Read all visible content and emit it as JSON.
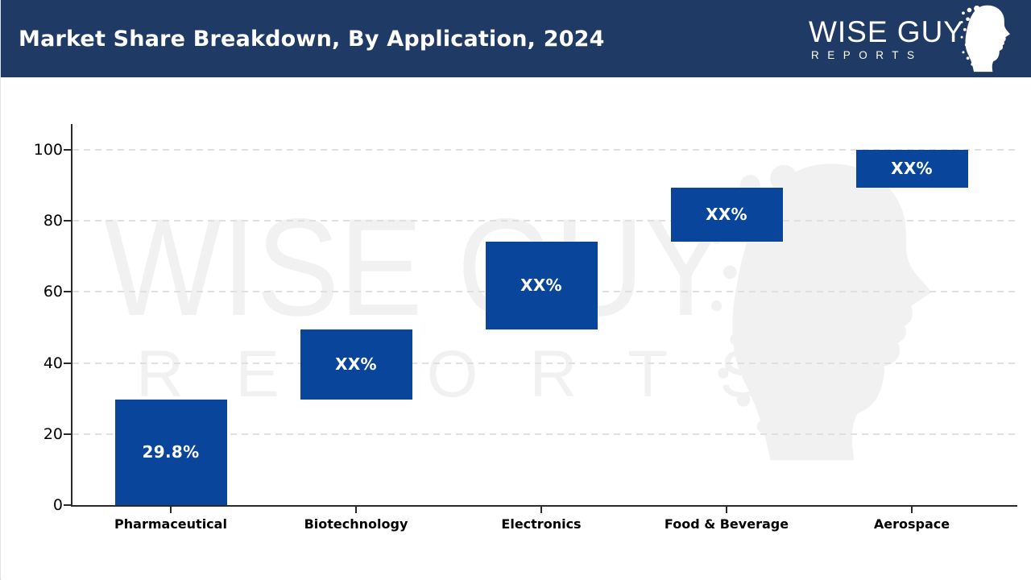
{
  "header": {
    "title": "Market Share Breakdown, By Application, 2024",
    "bg_color": "#1f3a64",
    "logo": {
      "line1": "WISE GUY",
      "line2": "REPORTS"
    }
  },
  "watermark": {
    "line1": "WISE GUY",
    "line2": "REPORTS",
    "color": "#f1f1f1"
  },
  "chart_data": {
    "type": "bar",
    "subtype": "waterfall",
    "title": "Market Share Breakdown, By Application, 2024",
    "xlabel": "",
    "ylabel": "",
    "categories": [
      "Pharmaceutical",
      "Biotechnology",
      "Electronics",
      "Food & Beverage",
      "Aerospace"
    ],
    "segments": [
      {
        "category": "Pharmaceutical",
        "start": 0,
        "end": 29.8,
        "value": 29.8,
        "label": "29.8%"
      },
      {
        "category": "Biotechnology",
        "start": 29.8,
        "end": 49.5,
        "value": 19.7,
        "label": "XX%"
      },
      {
        "category": "Electronics",
        "start": 49.5,
        "end": 74.2,
        "value": 24.7,
        "label": "XX%"
      },
      {
        "category": "Food & Beverage",
        "start": 74.2,
        "end": 89.4,
        "value": 15.2,
        "label": "XX%"
      },
      {
        "category": "Aerospace",
        "start": 89.4,
        "end": 100,
        "value": 10.6,
        "label": "XX%"
      }
    ],
    "y_ticks": [
      0,
      20,
      40,
      60,
      80,
      100
    ],
    "ylim": [
      0,
      105
    ],
    "grid": "horizontal-dashed",
    "legend": "none",
    "bar_color": "#09459a",
    "axis_color": "#2a2a2a",
    "grid_color": "#e0e0e0",
    "label_color": "#ffffff"
  }
}
